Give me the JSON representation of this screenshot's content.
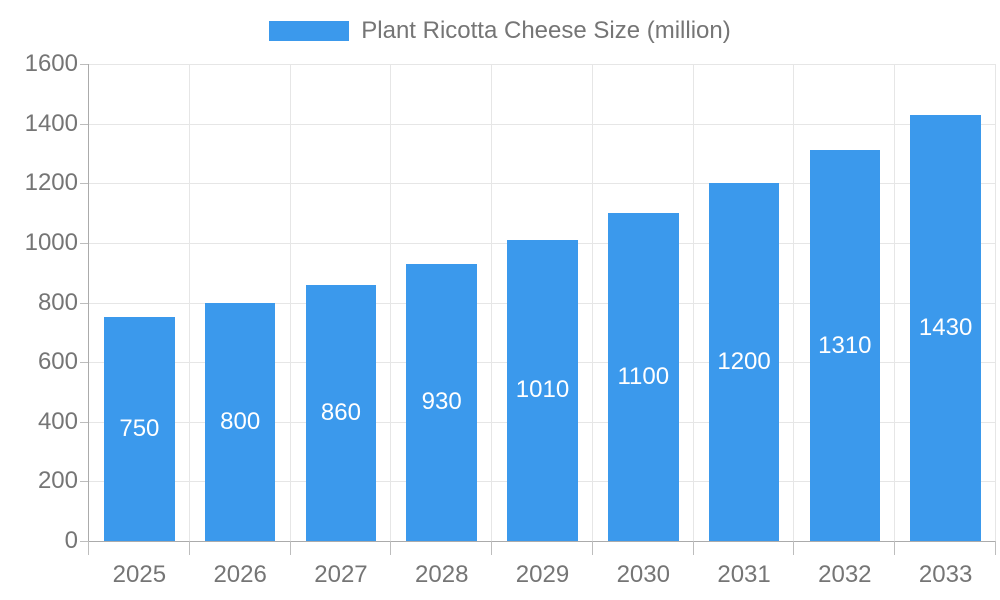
{
  "legend": {
    "label": "Plant Ricotta Cheese Size (million)",
    "swatch_color": "#3b99ec"
  },
  "chart_data": {
    "type": "bar",
    "title": "Plant Ricotta Cheese Size (million)",
    "categories": [
      "2025",
      "2026",
      "2027",
      "2028",
      "2029",
      "2030",
      "2031",
      "2032",
      "2033"
    ],
    "values": [
      750,
      800,
      860,
      930,
      1010,
      1100,
      1200,
      1310,
      1430
    ],
    "series_name": "Plant Ricotta Cheese Size (million)",
    "xlabel": "",
    "ylabel": "",
    "ylim": [
      0,
      1600
    ],
    "ytick_step": 200,
    "yticks": [
      0,
      200,
      400,
      600,
      800,
      1000,
      1200,
      1400,
      1600
    ],
    "grid": "on",
    "legend_position": "top-center",
    "bar_label_position": "inside-center",
    "colors": {
      "bar": "#3b99ec",
      "bar_label": "#ffffff",
      "gridline": "#e6e6e6",
      "axis_line": "#ababab",
      "tick": "#bdbdbd",
      "axis_text": "#757575",
      "background": "#ffffff"
    }
  }
}
